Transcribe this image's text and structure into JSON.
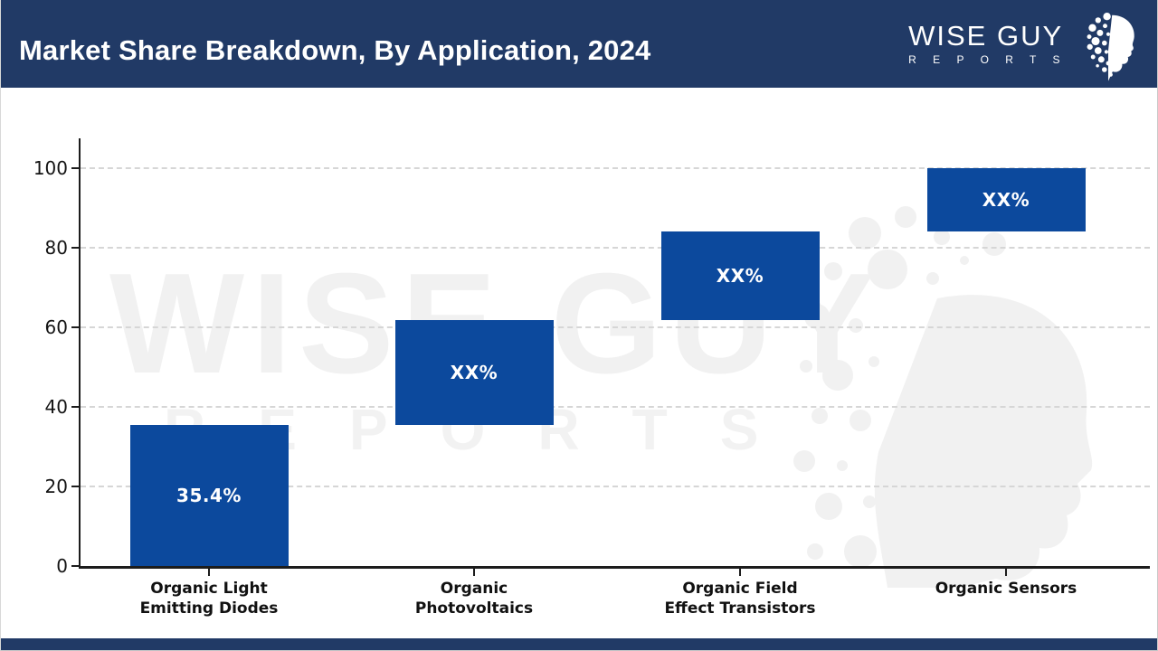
{
  "header": {
    "title": "Market Share Breakdown, By Application, 2024",
    "logo": {
      "line1": "WISE GUY",
      "line2": "R E P O R T S"
    }
  },
  "watermark": {
    "line1": "WISE GUY",
    "line2": "REPORTS"
  },
  "colors": {
    "header_bg": "#213a66",
    "footer_bg": "#213a66",
    "bar": "#0c499d",
    "bar_label_text": "#ffffff",
    "axis": "#1c1c1c",
    "gridline": "#d6d6d6",
    "watermark": "#f1f1f1"
  },
  "chart_data": {
    "type": "bar",
    "subtype": "waterfall",
    "title": "Market Share Breakdown, By Application, 2024",
    "categories": [
      "Organic Light\nEmitting Diodes",
      "Organic\nPhotovoltaics",
      "Organic Field\nEffect Transistors",
      "Organic Sensors"
    ],
    "segments": [
      {
        "category": "Organic Light Emitting Diodes",
        "start": 0,
        "end": 35.4,
        "label": "35.4%"
      },
      {
        "category": "Organic Photovoltaics",
        "start": 35.4,
        "end": 61.8,
        "label": "XX%"
      },
      {
        "category": "Organic Field Effect Transistors",
        "start": 61.8,
        "end": 84,
        "label": "XX%"
      },
      {
        "category": "Organic Sensors",
        "start": 84,
        "end": 100,
        "label": "XX%"
      }
    ],
    "xlabel": "",
    "ylabel": "",
    "yticks": [
      0,
      20,
      40,
      60,
      80,
      100
    ],
    "ylim": [
      0,
      107
    ],
    "grid": "horizontal-dashed",
    "legend": "none"
  }
}
